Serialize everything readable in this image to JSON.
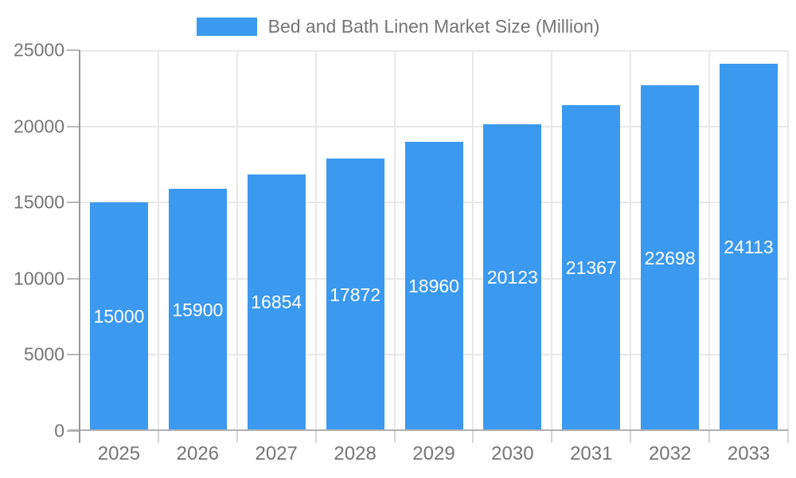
{
  "chart_data": {
    "type": "bar",
    "title": "Bed and Bath Linen Market Size (Million)",
    "legend_position": "top",
    "categories": [
      "2025",
      "2026",
      "2027",
      "2028",
      "2029",
      "2030",
      "2031",
      "2032",
      "2033"
    ],
    "values": [
      15000,
      15900,
      16854,
      17872,
      18960,
      20123,
      21367,
      22698,
      24113
    ],
    "series": [
      {
        "name": "Bed and Bath Linen Market Size (Million)",
        "values": [
          15000,
          15900,
          16854,
          17872,
          18960,
          20123,
          21367,
          22698,
          24113
        ]
      }
    ],
    "bar_value_labels": [
      "15000",
      "15900",
      "16854",
      "17872",
      "18960",
      "20123",
      "21367",
      "22698",
      "24113"
    ],
    "xlabel": "",
    "ylabel": "",
    "ylim": [
      0,
      25000
    ],
    "yticks": [
      0,
      5000,
      10000,
      15000,
      20000,
      25000
    ],
    "grid": true,
    "colors": {
      "bar": "#3B99F0",
      "grid": "#e8e8e8",
      "tick_text": "#757575",
      "bar_label": "#ffffff"
    }
  }
}
